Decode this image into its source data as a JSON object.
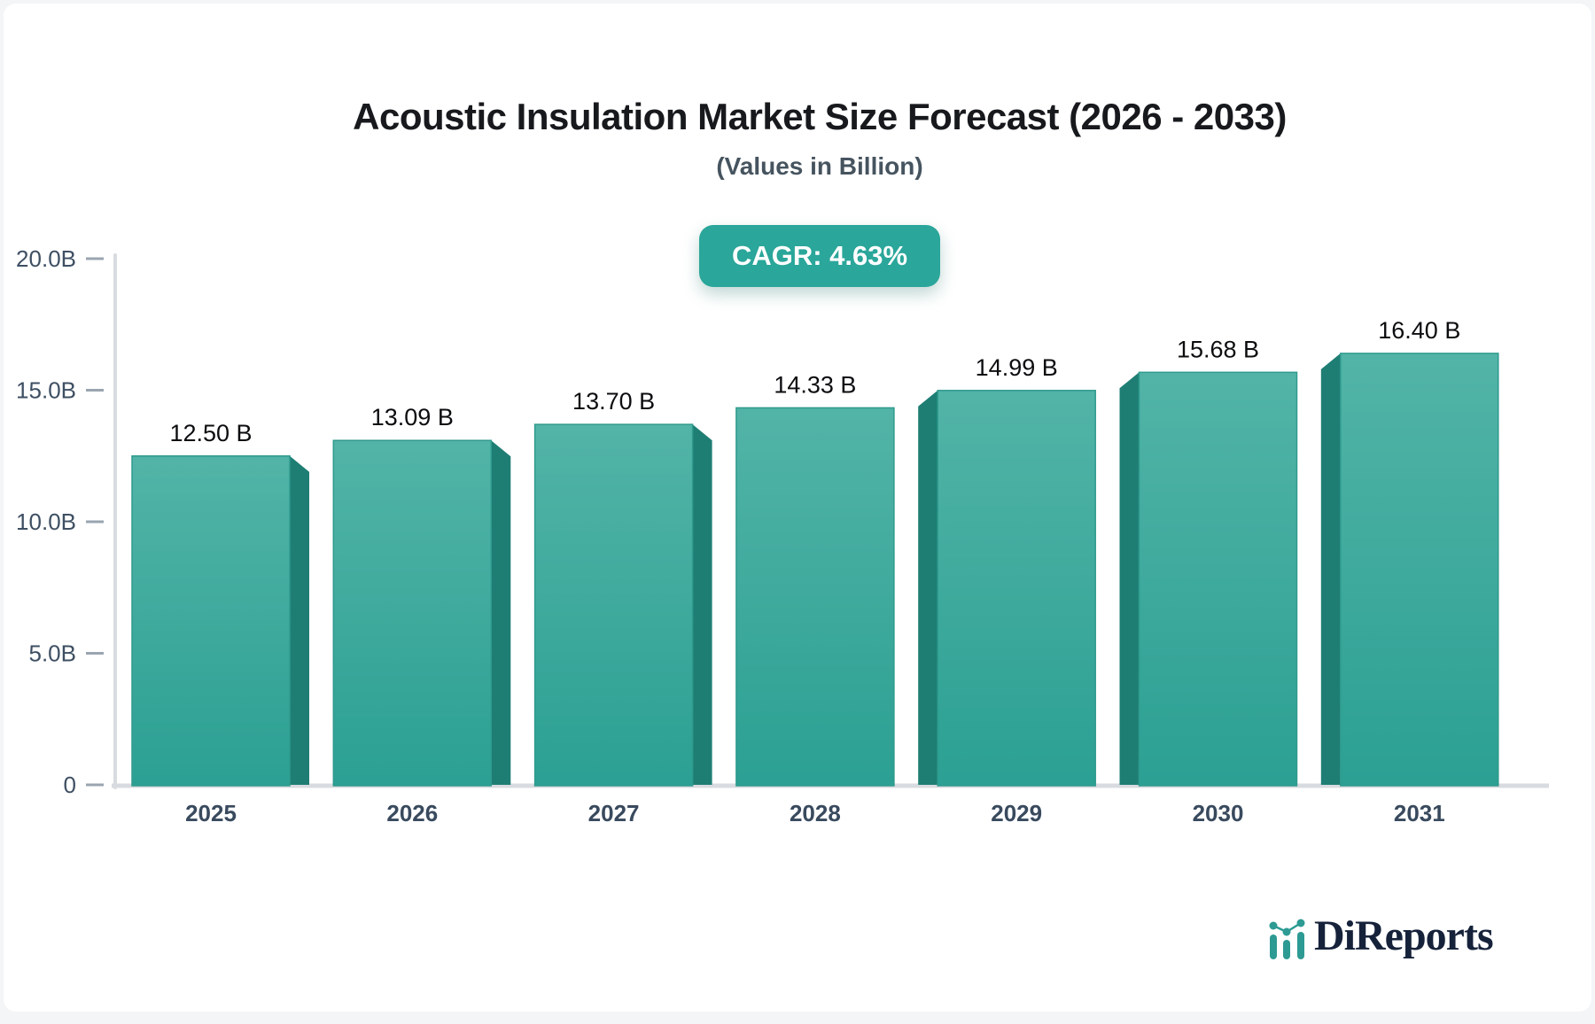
{
  "header": {
    "title": "Acoustic Insulation Market Size Forecast (2026 - 2033)",
    "subtitle": "(Values in Billion)"
  },
  "badge": {
    "label": "CAGR: 4.63%",
    "background": "#2aa69a",
    "text_color": "#ffffff"
  },
  "chart_data": {
    "type": "bar",
    "title": "Acoustic Insulation Market Size Forecast (2026 - 2033)",
    "subtitle": "(Values in Billion)",
    "categories": [
      "2025",
      "2026",
      "2027",
      "2028",
      "2029",
      "2030",
      "2031"
    ],
    "values": [
      12.5,
      13.09,
      13.7,
      14.33,
      14.99,
      15.68,
      16.4
    ],
    "value_labels": [
      "12.50 B",
      "13.09 B",
      "13.70 B",
      "14.33 B",
      "14.99 B",
      "15.68 B",
      "16.40 B"
    ],
    "ylabel": "",
    "xlabel": "",
    "ylim": [
      0,
      20
    ],
    "yticks": [
      {
        "value": 0,
        "label": "0"
      },
      {
        "value": 5,
        "label": "5.0B"
      },
      {
        "value": 10,
        "label": "10.0B"
      },
      {
        "value": 15,
        "label": "15.0B"
      },
      {
        "value": 20,
        "label": "20.0B"
      }
    ],
    "grid": false,
    "legend": false,
    "style": {
      "bar_color_top": "#52b4a7",
      "bar_color_bottom": "#2ba093",
      "bar_edge_color": "#2f9a8e",
      "bar_side_color": "#1e7e74",
      "axis_line_color": "#d8dbdf",
      "tick_mark_color": "#9aa5b1",
      "ytick_label_color": "#3e4f63",
      "xtick_label_color": "#394a5e",
      "value_label_color": "#0c0d0f"
    }
  },
  "logo": {
    "text": "DiReports",
    "icon": "mini-bar-chart-icon",
    "icon_color": "#2d9a93",
    "text_color": "#16223a"
  }
}
